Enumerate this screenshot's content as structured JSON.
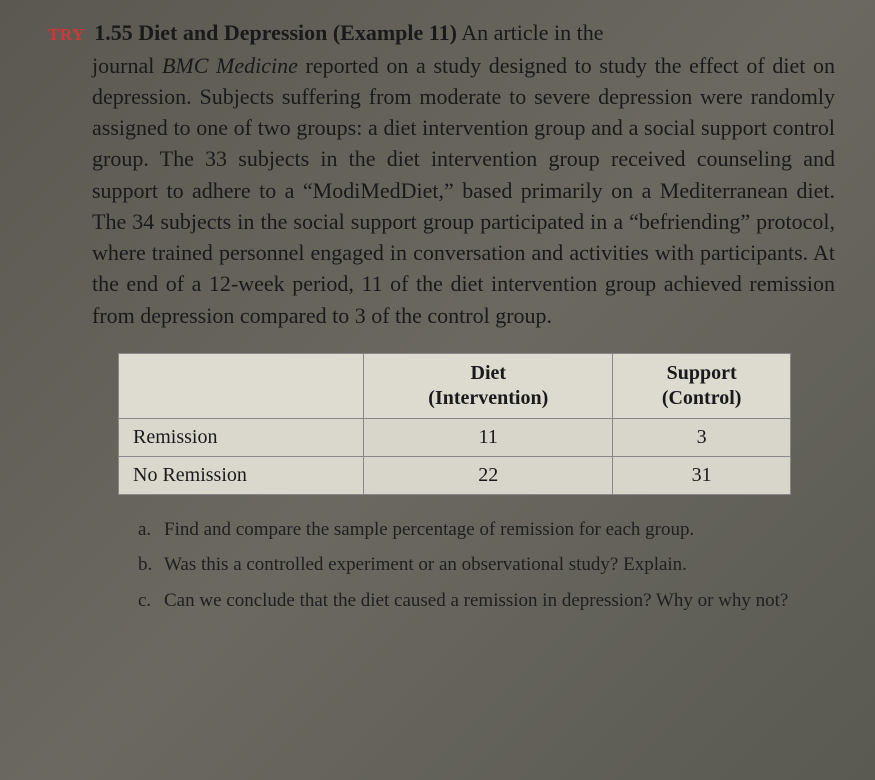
{
  "problem": {
    "try_label": "TRY",
    "number": "1.55",
    "title": "Diet and Depression (Example 11)",
    "lead_in": "An article in the",
    "journal": "BMC Medicine",
    "body_after_journal": " reported on a study designed to study the effect of diet on depression. Subjects suffering from moderate to severe depression were randomly assigned to one of two groups: a diet intervention group and a social support control group. The 33 subjects in the diet intervention group received counseling and support to adhere to a “ModiMedDiet,” based primarily on a Mediterranean diet. The 34 subjects in the social support group participated in a “befriending” protocol, where trained personnel engaged in conversation and activities with participants. At the end of a 12-week period, 11 of the diet intervention group achieved remission from depression compared to 3 of the control group.",
    "body_prefix": "journal "
  },
  "table": {
    "col1_main": "Diet",
    "col1_sub": "(Intervention)",
    "col2_main": "Support",
    "col2_sub": "(Control)",
    "row1_label": "Remission",
    "row1_c1": "11",
    "row1_c2": "3",
    "row2_label": "No Remission",
    "row2_c1": "22",
    "row2_c2": "31",
    "header_bg": "#dddacf",
    "cell_bg": "#d8d6ca",
    "border_color": "#888888"
  },
  "questions": {
    "a_label": "a.",
    "a_text": "Find and compare the sample percentage of remission for each group.",
    "b_label": "b.",
    "b_text": "Was this a controlled experiment or an observational study? Explain.",
    "c_label": "c.",
    "c_text": "Can we conclude that the diet caused a remission in depression? Why or why not?"
  }
}
